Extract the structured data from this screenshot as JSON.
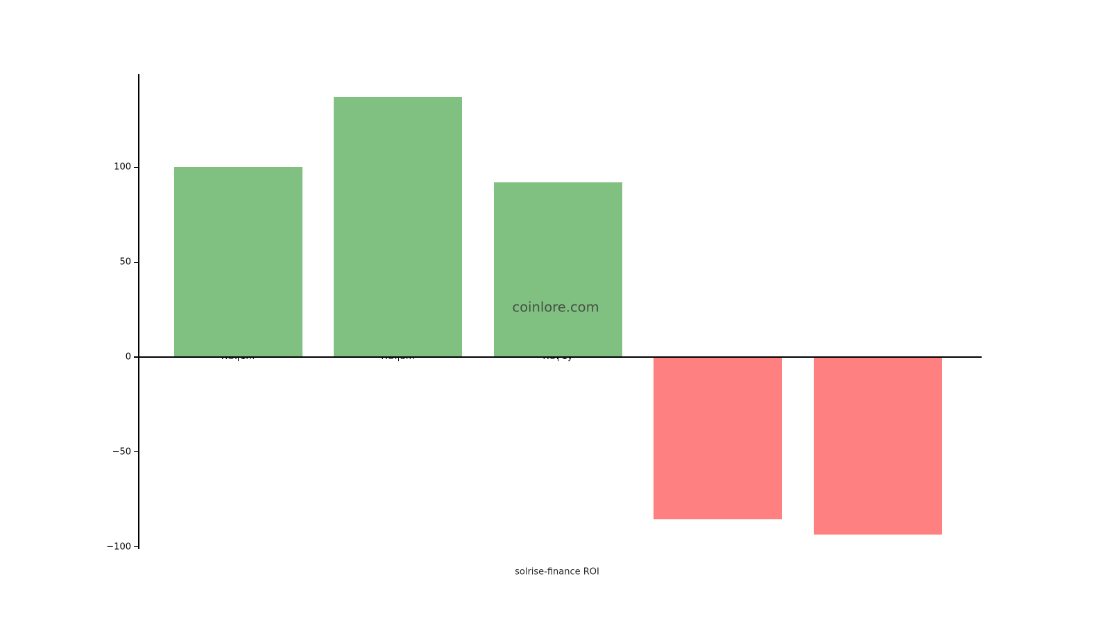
{
  "chart_data": {
    "type": "bar",
    "categories": [
      "ROI 1m",
      "ROI 3m",
      "ROI 1y",
      "",
      ""
    ],
    "values": [
      100,
      137,
      92,
      -85,
      -93
    ],
    "title": "solrise-finance ROI",
    "xlabel": "",
    "ylabel": "",
    "ylim": [
      -105,
      149
    ],
    "yticks": [
      100,
      50,
      0,
      -50,
      -100
    ],
    "grid": false,
    "legend": null,
    "watermark": "coinlore.com",
    "colors": {
      "positive": "#80c080",
      "negative": "#ff8080",
      "axis": "#000000",
      "watermark_text": "#3c3c3c",
      "title_text": "#262626"
    }
  }
}
